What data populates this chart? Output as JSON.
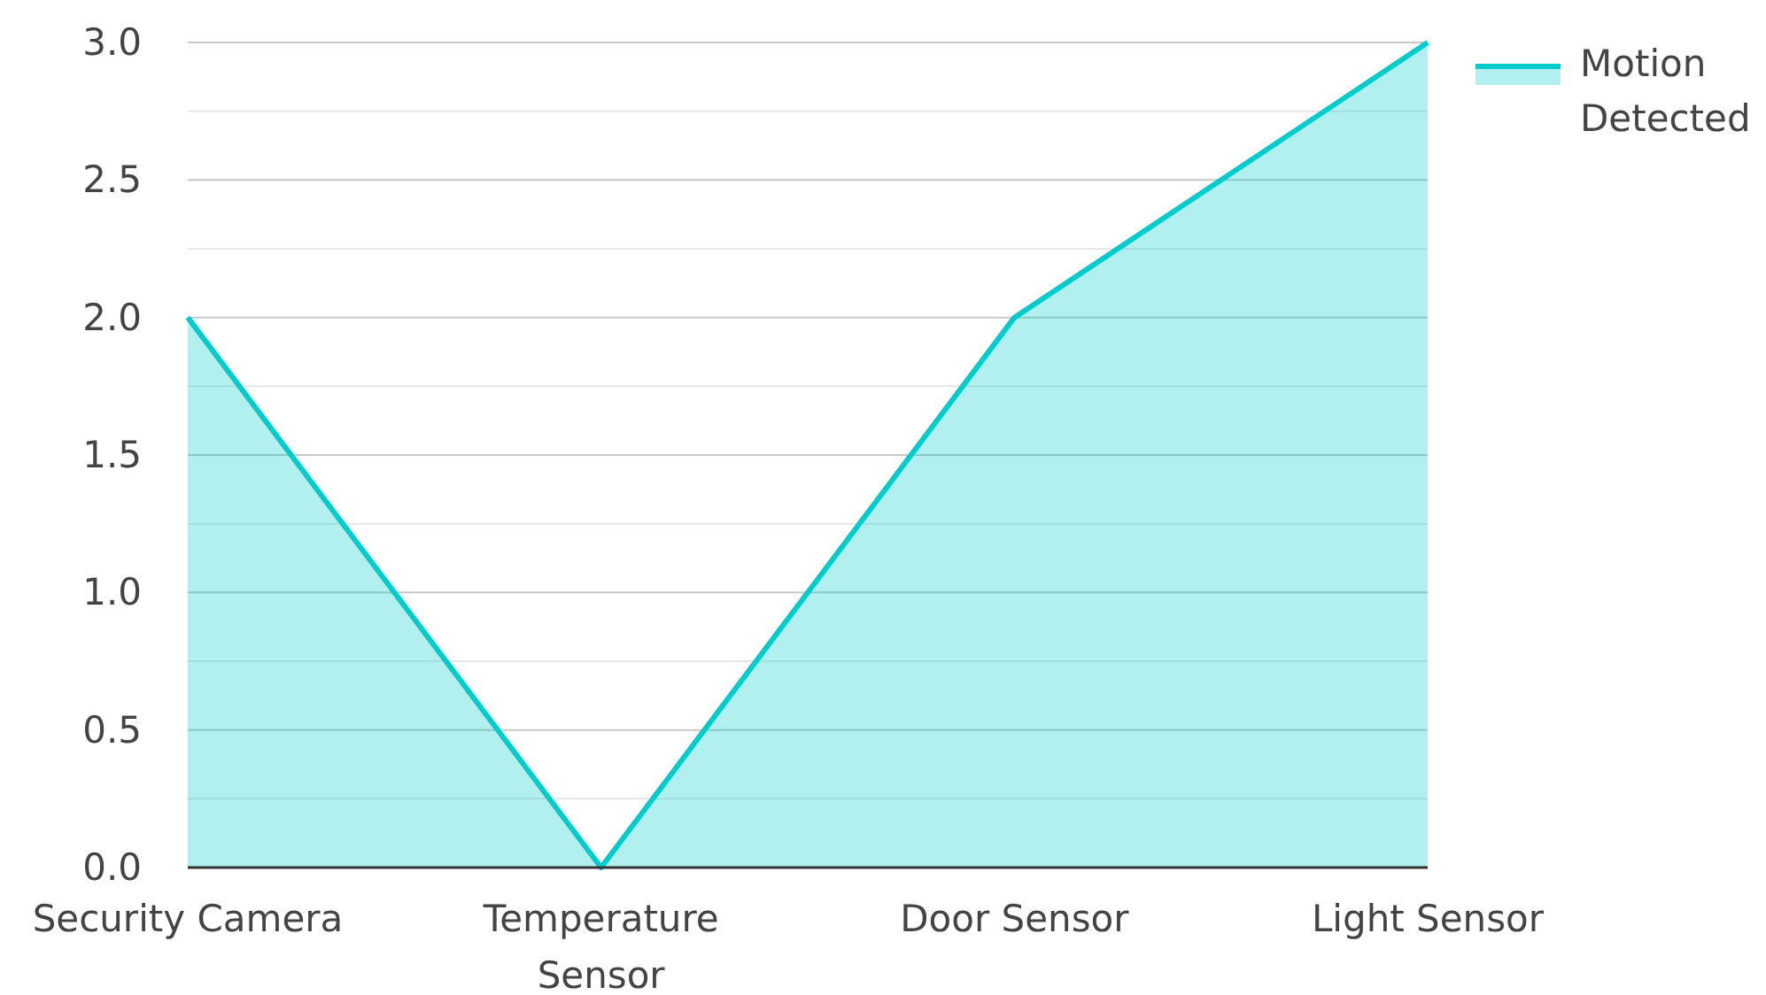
{
  "chart_data": {
    "type": "area",
    "categories": [
      "Security Camera",
      "Temperature Sensor",
      "Door Sensor",
      "Light Sensor"
    ],
    "series": [
      {
        "name": "Motion Detected",
        "color": "#00cccc",
        "values": [
          2,
          0,
          2,
          3
        ]
      }
    ],
    "ylim": [
      0,
      3
    ],
    "yticks": [
      {
        "value": 0,
        "label": "0.0"
      },
      {
        "value": 0.25,
        "label": null
      },
      0.5,
      {
        "value": 0.75,
        "label": null
      },
      {
        "value": 1,
        "label": "1.0"
      },
      {
        "value": 1.25,
        "label": null
      },
      1.5,
      {
        "value": 1.75,
        "label": null
      },
      {
        "value": 2,
        "label": "2.0"
      },
      {
        "value": 2.25,
        "label": null
      },
      2.5,
      {
        "value": 2.75,
        "label": null
      },
      {
        "value": 3,
        "label": "3.0"
      }
    ],
    "grid": "y",
    "legend": "top right"
  }
}
